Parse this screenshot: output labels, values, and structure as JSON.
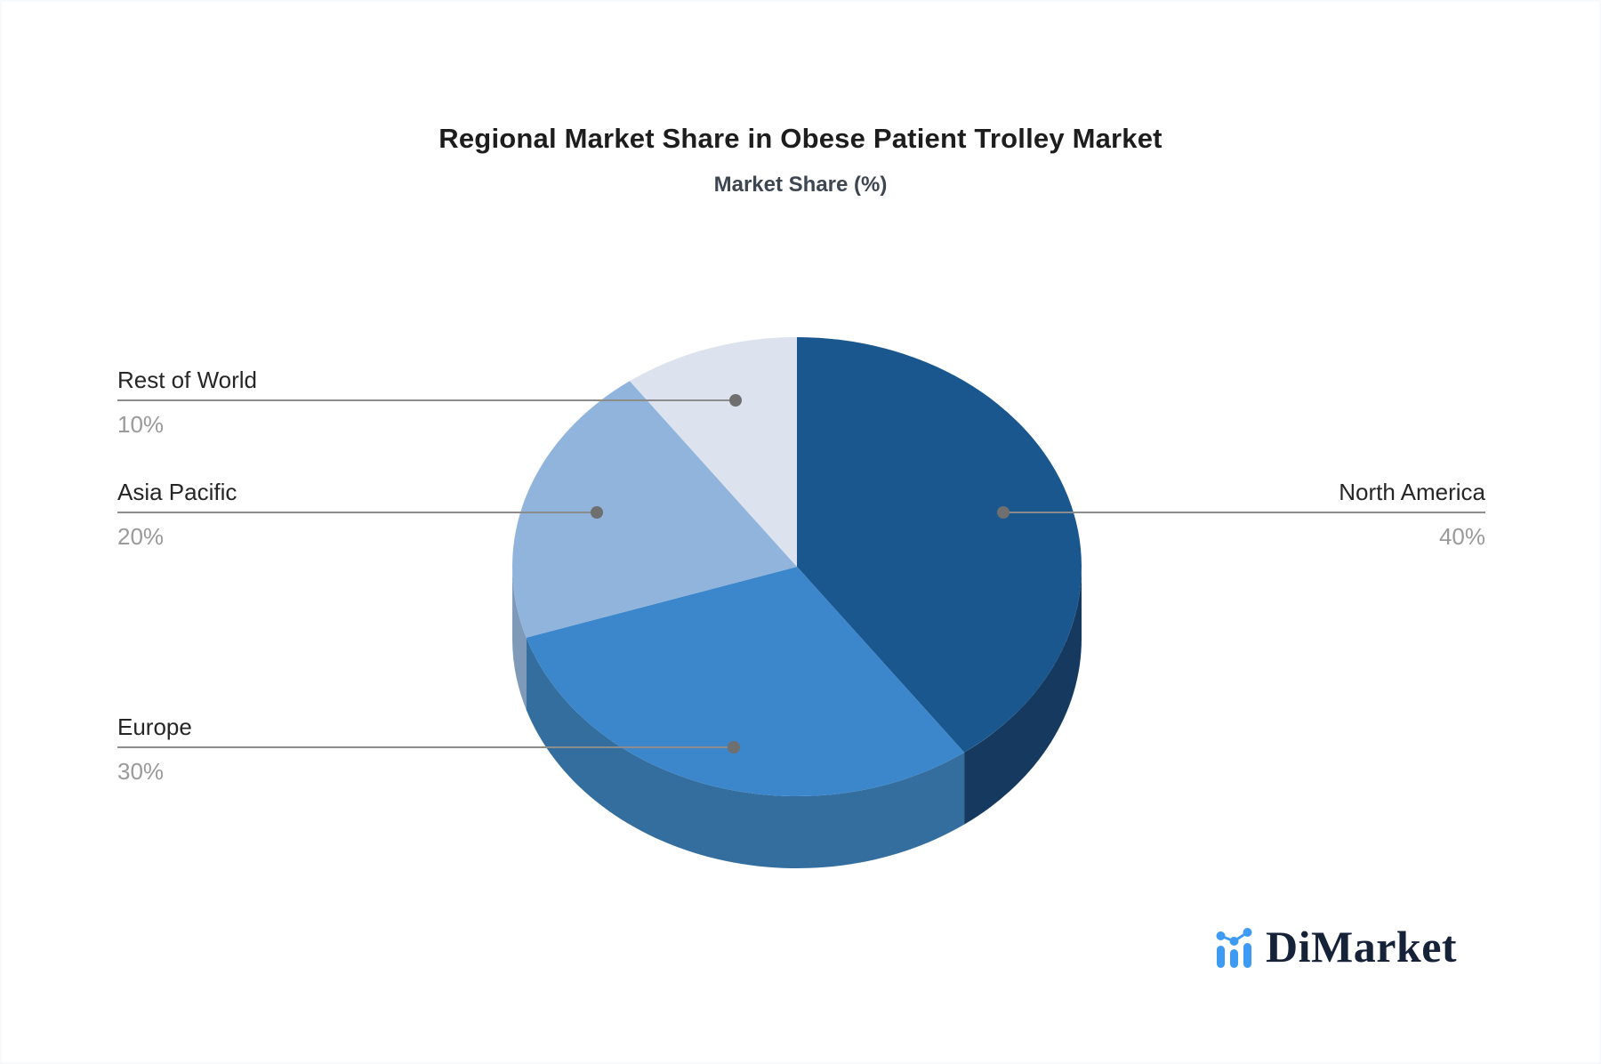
{
  "header": {
    "title": "Regional Market Share in Obese Patient Trolley Market",
    "subtitle": "Market Share (%)",
    "title_color": "#1d1d1d",
    "subtitle_color": "#3e4651"
  },
  "chart_data": {
    "type": "pie",
    "style": "3d",
    "title": "Regional Market Share in Obese Patient Trolley Market",
    "subtitle": "Market Share (%)",
    "unit": "%",
    "direction": "clockwise",
    "start_angle_deg": 0,
    "legend_position": "callout-labels",
    "slices": [
      {
        "label": "North America",
        "value": 40,
        "pct_label": "40%",
        "color": "#1b578f",
        "side_color": "#163a5f",
        "callout_side": "right"
      },
      {
        "label": "Europe",
        "value": 30,
        "pct_label": "30%",
        "color": "#3c87cb",
        "side_color": "#336e9f",
        "callout_side": "left"
      },
      {
        "label": "Asia Pacific",
        "value": 20,
        "pct_label": "20%",
        "color": "#91b4dc",
        "side_color": "#7e9ab8",
        "callout_side": "left"
      },
      {
        "label": "Rest of World",
        "value": 10,
        "pct_label": "10%",
        "color": "#dde3ee",
        "side_color": "#b9c6d8",
        "callout_side": "left"
      }
    ],
    "label_color": "#262626",
    "pct_color": "#9a9a9a",
    "leader_line_color": "#8c8c8c",
    "leader_dot_color": "#6f6f6f"
  },
  "branding": {
    "logo_text": "DiMarket",
    "logo_text_color": "#152238",
    "logo_icon": "bar-chart-icon",
    "logo_icon_color": "#3e9bf4"
  }
}
